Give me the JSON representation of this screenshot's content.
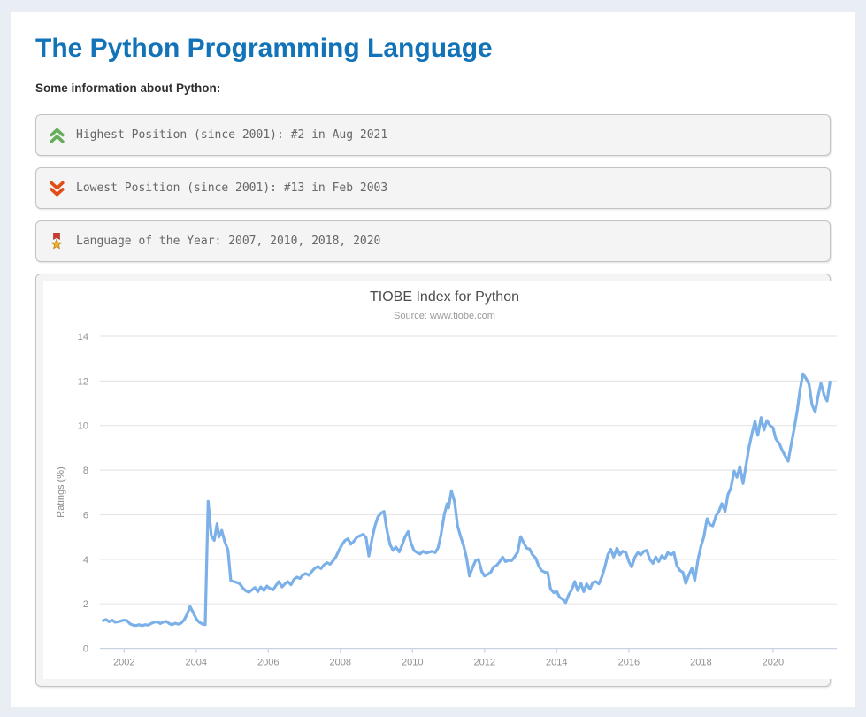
{
  "page": {
    "title": "The Python Programming Language",
    "intro": "Some information about Python:"
  },
  "info_boxes": [
    {
      "icon": "angles-up-icon",
      "text": "Highest Position (since 2001): #2 in Aug 2021"
    },
    {
      "icon": "angles-down-icon",
      "text": "Lowest Position (since 2001): #13 in Feb 2003"
    },
    {
      "icon": "medal-icon",
      "text": "Language of the Year: 2007, 2010, 2018, 2020"
    }
  ],
  "colors": {
    "page_background": "#e9edf4",
    "title_blue": "#1273b8",
    "highest_icon_green": "#67ad5b",
    "lowest_icon_red": "#e04d17",
    "medal_gold": "#f0b429",
    "medal_gold_outline": "#c8871e",
    "medal_ribbon_red": "#cc3b33"
  },
  "chart_data": {
    "type": "line",
    "title": "TIOBE Index for Python",
    "subtitle": "Source: www.tiobe.com",
    "xlabel": "",
    "ylabel": "Ratings (%)",
    "xlim": [
      2001.33,
      2021.77
    ],
    "ylim": [
      0,
      14
    ],
    "x_ticks": [
      2002,
      2004,
      2006,
      2008,
      2010,
      2012,
      2014,
      2016,
      2018,
      2020
    ],
    "y_ticks": [
      0,
      2,
      4,
      6,
      8,
      10,
      12,
      14
    ],
    "grid": "horizontal",
    "legend": "none",
    "line_color": "#7cb0e8",
    "axis_color": "#c9d2e2",
    "grid_color": "#e6e6e6",
    "series": [
      {
        "name": "Python ratings (%)",
        "points": [
          [
            2001.42,
            1.25
          ],
          [
            2001.5,
            1.3
          ],
          [
            2001.58,
            1.2
          ],
          [
            2001.67,
            1.27
          ],
          [
            2001.75,
            1.18
          ],
          [
            2001.83,
            1.2
          ],
          [
            2001.92,
            1.24
          ],
          [
            2002.0,
            1.27
          ],
          [
            2002.08,
            1.25
          ],
          [
            2002.17,
            1.1
          ],
          [
            2002.25,
            1.05
          ],
          [
            2002.33,
            1.03
          ],
          [
            2002.42,
            1.07
          ],
          [
            2002.5,
            1.02
          ],
          [
            2002.58,
            1.07
          ],
          [
            2002.67,
            1.05
          ],
          [
            2002.75,
            1.12
          ],
          [
            2002.83,
            1.18
          ],
          [
            2002.92,
            1.2
          ],
          [
            2003.0,
            1.12
          ],
          [
            2003.08,
            1.18
          ],
          [
            2003.17,
            1.22
          ],
          [
            2003.25,
            1.12
          ],
          [
            2003.33,
            1.07
          ],
          [
            2003.42,
            1.13
          ],
          [
            2003.5,
            1.09
          ],
          [
            2003.58,
            1.13
          ],
          [
            2003.67,
            1.3
          ],
          [
            2003.75,
            1.55
          ],
          [
            2003.83,
            1.88
          ],
          [
            2003.92,
            1.6
          ],
          [
            2004.0,
            1.33
          ],
          [
            2004.08,
            1.18
          ],
          [
            2004.17,
            1.1
          ],
          [
            2004.25,
            1.07
          ],
          [
            2004.33,
            6.6
          ],
          [
            2004.42,
            5.05
          ],
          [
            2004.5,
            4.85
          ],
          [
            2004.58,
            5.6
          ],
          [
            2004.63,
            5.0
          ],
          [
            2004.71,
            5.3
          ],
          [
            2004.79,
            4.8
          ],
          [
            2004.88,
            4.42
          ],
          [
            2004.96,
            3.05
          ],
          [
            2005.04,
            3.0
          ],
          [
            2005.13,
            2.96
          ],
          [
            2005.21,
            2.9
          ],
          [
            2005.29,
            2.72
          ],
          [
            2005.38,
            2.58
          ],
          [
            2005.46,
            2.52
          ],
          [
            2005.54,
            2.62
          ],
          [
            2005.63,
            2.73
          ],
          [
            2005.71,
            2.55
          ],
          [
            2005.79,
            2.76
          ],
          [
            2005.88,
            2.6
          ],
          [
            2005.96,
            2.8
          ],
          [
            2006.04,
            2.7
          ],
          [
            2006.13,
            2.63
          ],
          [
            2006.21,
            2.82
          ],
          [
            2006.29,
            3.0
          ],
          [
            2006.38,
            2.76
          ],
          [
            2006.46,
            2.9
          ],
          [
            2006.54,
            3.0
          ],
          [
            2006.63,
            2.86
          ],
          [
            2006.71,
            3.1
          ],
          [
            2006.79,
            3.2
          ],
          [
            2006.88,
            3.14
          ],
          [
            2006.96,
            3.3
          ],
          [
            2007.04,
            3.36
          ],
          [
            2007.13,
            3.28
          ],
          [
            2007.21,
            3.46
          ],
          [
            2007.29,
            3.6
          ],
          [
            2007.38,
            3.68
          ],
          [
            2007.46,
            3.58
          ],
          [
            2007.54,
            3.74
          ],
          [
            2007.63,
            3.85
          ],
          [
            2007.71,
            3.78
          ],
          [
            2007.79,
            3.92
          ],
          [
            2007.88,
            4.12
          ],
          [
            2007.96,
            4.4
          ],
          [
            2008.04,
            4.65
          ],
          [
            2008.13,
            4.85
          ],
          [
            2008.21,
            4.92
          ],
          [
            2008.29,
            4.68
          ],
          [
            2008.38,
            4.82
          ],
          [
            2008.46,
            5.0
          ],
          [
            2008.54,
            5.05
          ],
          [
            2008.63,
            5.12
          ],
          [
            2008.71,
            4.98
          ],
          [
            2008.79,
            4.15
          ],
          [
            2008.88,
            4.95
          ],
          [
            2008.96,
            5.5
          ],
          [
            2009.04,
            5.9
          ],
          [
            2009.13,
            6.08
          ],
          [
            2009.21,
            6.15
          ],
          [
            2009.29,
            5.3
          ],
          [
            2009.38,
            4.65
          ],
          [
            2009.46,
            4.4
          ],
          [
            2009.54,
            4.55
          ],
          [
            2009.63,
            4.33
          ],
          [
            2009.71,
            4.63
          ],
          [
            2009.79,
            5.0
          ],
          [
            2009.88,
            5.25
          ],
          [
            2009.96,
            4.72
          ],
          [
            2010.04,
            4.4
          ],
          [
            2010.13,
            4.3
          ],
          [
            2010.21,
            4.24
          ],
          [
            2010.29,
            4.36
          ],
          [
            2010.38,
            4.28
          ],
          [
            2010.46,
            4.32
          ],
          [
            2010.54,
            4.36
          ],
          [
            2010.63,
            4.3
          ],
          [
            2010.71,
            4.52
          ],
          [
            2010.79,
            5.1
          ],
          [
            2010.88,
            6.0
          ],
          [
            2010.96,
            6.5
          ],
          [
            2011.0,
            6.3
          ],
          [
            2011.08,
            7.08
          ],
          [
            2011.17,
            6.55
          ],
          [
            2011.25,
            5.5
          ],
          [
            2011.33,
            5.05
          ],
          [
            2011.42,
            4.6
          ],
          [
            2011.5,
            4.05
          ],
          [
            2011.58,
            3.25
          ],
          [
            2011.67,
            3.65
          ],
          [
            2011.75,
            3.95
          ],
          [
            2011.83,
            4.0
          ],
          [
            2011.92,
            3.45
          ],
          [
            2012.0,
            3.25
          ],
          [
            2012.08,
            3.32
          ],
          [
            2012.17,
            3.42
          ],
          [
            2012.25,
            3.66
          ],
          [
            2012.33,
            3.72
          ],
          [
            2012.42,
            3.9
          ],
          [
            2012.5,
            4.1
          ],
          [
            2012.58,
            3.9
          ],
          [
            2012.67,
            3.96
          ],
          [
            2012.75,
            3.94
          ],
          [
            2012.83,
            4.1
          ],
          [
            2012.92,
            4.32
          ],
          [
            2013.0,
            5.02
          ],
          [
            2013.08,
            4.75
          ],
          [
            2013.17,
            4.5
          ],
          [
            2013.25,
            4.46
          ],
          [
            2013.33,
            4.2
          ],
          [
            2013.42,
            4.05
          ],
          [
            2013.5,
            3.7
          ],
          [
            2013.58,
            3.5
          ],
          [
            2013.67,
            3.42
          ],
          [
            2013.75,
            3.4
          ],
          [
            2013.83,
            2.66
          ],
          [
            2013.92,
            2.5
          ],
          [
            2014.0,
            2.56
          ],
          [
            2014.08,
            2.3
          ],
          [
            2014.17,
            2.2
          ],
          [
            2014.25,
            2.06
          ],
          [
            2014.33,
            2.4
          ],
          [
            2014.42,
            2.66
          ],
          [
            2014.5,
            3.0
          ],
          [
            2014.58,
            2.6
          ],
          [
            2014.67,
            2.92
          ],
          [
            2014.75,
            2.55
          ],
          [
            2014.83,
            2.9
          ],
          [
            2014.92,
            2.66
          ],
          [
            2015.0,
            2.96
          ],
          [
            2015.08,
            3.0
          ],
          [
            2015.17,
            2.9
          ],
          [
            2015.25,
            3.2
          ],
          [
            2015.33,
            3.62
          ],
          [
            2015.42,
            4.2
          ],
          [
            2015.5,
            4.45
          ],
          [
            2015.58,
            4.1
          ],
          [
            2015.67,
            4.5
          ],
          [
            2015.75,
            4.2
          ],
          [
            2015.83,
            4.36
          ],
          [
            2015.92,
            4.3
          ],
          [
            2016.0,
            3.9
          ],
          [
            2016.08,
            3.66
          ],
          [
            2016.17,
            4.1
          ],
          [
            2016.25,
            4.3
          ],
          [
            2016.33,
            4.2
          ],
          [
            2016.42,
            4.36
          ],
          [
            2016.5,
            4.4
          ],
          [
            2016.58,
            4.0
          ],
          [
            2016.67,
            3.82
          ],
          [
            2016.75,
            4.1
          ],
          [
            2016.83,
            3.9
          ],
          [
            2016.92,
            4.16
          ],
          [
            2017.0,
            4.02
          ],
          [
            2017.08,
            4.3
          ],
          [
            2017.17,
            4.2
          ],
          [
            2017.25,
            4.3
          ],
          [
            2017.33,
            3.72
          ],
          [
            2017.42,
            3.5
          ],
          [
            2017.5,
            3.42
          ],
          [
            2017.58,
            2.92
          ],
          [
            2017.67,
            3.32
          ],
          [
            2017.75,
            3.6
          ],
          [
            2017.83,
            3.05
          ],
          [
            2017.92,
            4.0
          ],
          [
            2018.0,
            4.58
          ],
          [
            2018.08,
            5.0
          ],
          [
            2018.17,
            5.82
          ],
          [
            2018.25,
            5.55
          ],
          [
            2018.33,
            5.5
          ],
          [
            2018.42,
            5.96
          ],
          [
            2018.5,
            6.15
          ],
          [
            2018.58,
            6.5
          ],
          [
            2018.67,
            6.16
          ],
          [
            2018.75,
            6.9
          ],
          [
            2018.83,
            7.2
          ],
          [
            2018.92,
            7.96
          ],
          [
            2019.0,
            7.68
          ],
          [
            2019.08,
            8.16
          ],
          [
            2019.17,
            7.4
          ],
          [
            2019.25,
            8.2
          ],
          [
            2019.33,
            9.0
          ],
          [
            2019.42,
            9.66
          ],
          [
            2019.5,
            10.2
          ],
          [
            2019.58,
            9.56
          ],
          [
            2019.67,
            10.36
          ],
          [
            2019.75,
            9.8
          ],
          [
            2019.83,
            10.22
          ],
          [
            2019.92,
            10.0
          ],
          [
            2020.0,
            9.9
          ],
          [
            2020.08,
            9.4
          ],
          [
            2020.17,
            9.2
          ],
          [
            2020.25,
            8.9
          ],
          [
            2020.33,
            8.66
          ],
          [
            2020.42,
            8.4
          ],
          [
            2020.5,
            9.1
          ],
          [
            2020.58,
            9.8
          ],
          [
            2020.67,
            10.66
          ],
          [
            2020.75,
            11.6
          ],
          [
            2020.83,
            12.32
          ],
          [
            2020.92,
            12.1
          ],
          [
            2021.0,
            11.86
          ],
          [
            2021.08,
            10.95
          ],
          [
            2021.17,
            10.6
          ],
          [
            2021.25,
            11.32
          ],
          [
            2021.33,
            11.9
          ],
          [
            2021.42,
            11.36
          ],
          [
            2021.5,
            11.1
          ],
          [
            2021.58,
            11.96
          ]
        ]
      }
    ]
  }
}
